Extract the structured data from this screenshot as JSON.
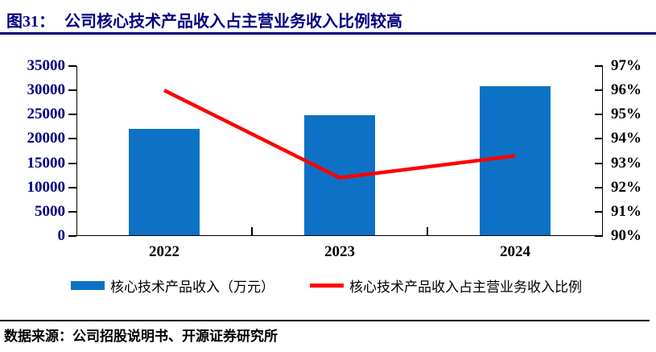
{
  "figure": {
    "label": "图31：",
    "title": "公司核心技术产品收入占主营业务收入比例较高"
  },
  "source": {
    "text": "数据来源：公司招股说明书、开源证券研究所"
  },
  "colors": {
    "title": "#000080",
    "title_rule": "#000080",
    "left_axis_labels": "#000080",
    "right_axis_labels": "#000000",
    "axis_line": "#000000",
    "bar": "#0d72c6",
    "line": "#ff0000"
  },
  "chart_data": {
    "type": "bar+line",
    "title": "公司核心技术产品收入占主营业务收入比例较高",
    "categories": [
      "2022",
      "2023",
      "2024"
    ],
    "series": [
      {
        "name": "核心技术产品收入（万元）",
        "type": "bar",
        "axis": "left",
        "color": "#0d72c6",
        "values": [
          22000,
          24900,
          30800
        ]
      },
      {
        "name": "核心技术产品收入占主营业务收入比例",
        "type": "line",
        "axis": "right",
        "color": "#ff0000",
        "values": [
          96.0,
          92.4,
          93.3
        ]
      }
    ],
    "left_axis": {
      "min": 0,
      "max": 35000,
      "step": 5000,
      "tick_labels": [
        "0",
        "5000",
        "10000",
        "15000",
        "20000",
        "25000",
        "30000",
        "35000"
      ]
    },
    "right_axis": {
      "min": 90,
      "max": 97,
      "step": 1,
      "tick_labels": [
        "90%",
        "91%",
        "92%",
        "93%",
        "94%",
        "95%",
        "96%",
        "97%"
      ]
    },
    "grid": false,
    "legend_position": "bottom"
  }
}
